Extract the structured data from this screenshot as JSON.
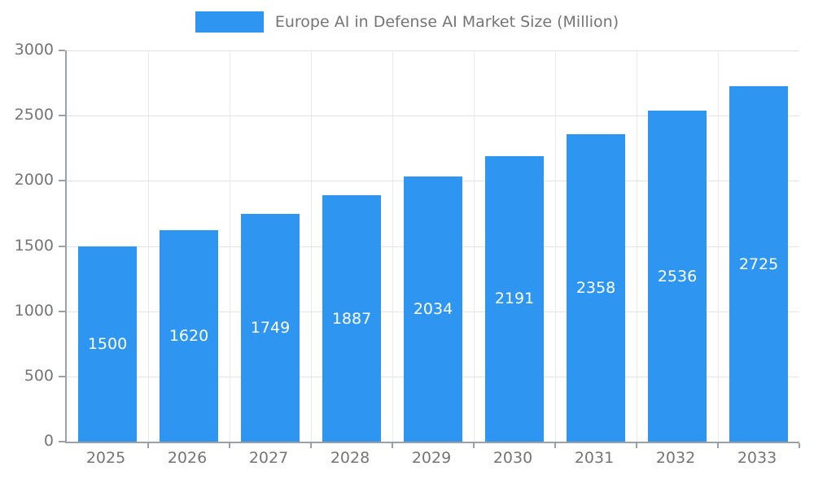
{
  "chart_data": {
    "type": "bar",
    "title": "Europe AI in Defense AI Market Size (Million)",
    "categories": [
      "2025",
      "2026",
      "2027",
      "2028",
      "2029",
      "2030",
      "2031",
      "2032",
      "2033"
    ],
    "values": [
      1500,
      1620,
      1749,
      1887,
      2034,
      2191,
      2358,
      2536,
      2725
    ],
    "xlabel": "",
    "ylabel": "",
    "ylim": [
      0,
      3000
    ],
    "ytick_step": 500,
    "ytick_labels": [
      "0",
      "500",
      "1000",
      "1500",
      "2000",
      "2500",
      "3000"
    ],
    "grid": true,
    "legend_position": "top",
    "colors": {
      "bar": "#2E96F0",
      "bar_value_text": "#ffffff",
      "axis_text": "#757575",
      "axis_line": "#9aa0a6",
      "gridline": "#e3e3e3",
      "title_text": "#757575"
    }
  }
}
